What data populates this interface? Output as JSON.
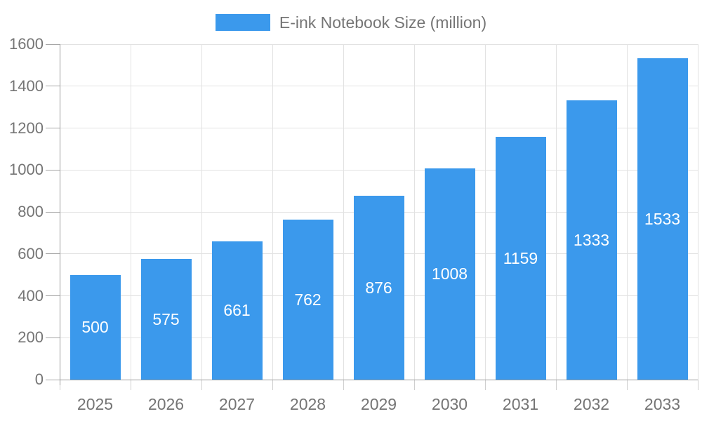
{
  "legend": {
    "label": "E-ink Notebook Size (million)"
  },
  "chart_data": {
    "type": "bar",
    "title": "E-ink Notebook Size (million)",
    "series_name": "E-ink Notebook Size (million)",
    "categories": [
      "2025",
      "2026",
      "2027",
      "2028",
      "2029",
      "2030",
      "2031",
      "2032",
      "2033"
    ],
    "values": [
      500,
      575,
      661,
      762,
      876,
      1008,
      1159,
      1333,
      1533
    ],
    "xlabel": "",
    "ylabel": "",
    "ylim": [
      0,
      1600
    ],
    "yticks": [
      0,
      200,
      400,
      600,
      800,
      1000,
      1200,
      1400,
      1600
    ],
    "grid": "on",
    "legend_position": "top",
    "bar_color": "#3B99EC",
    "value_label_color": "#ffffff",
    "axis_text_color": "#757575"
  }
}
